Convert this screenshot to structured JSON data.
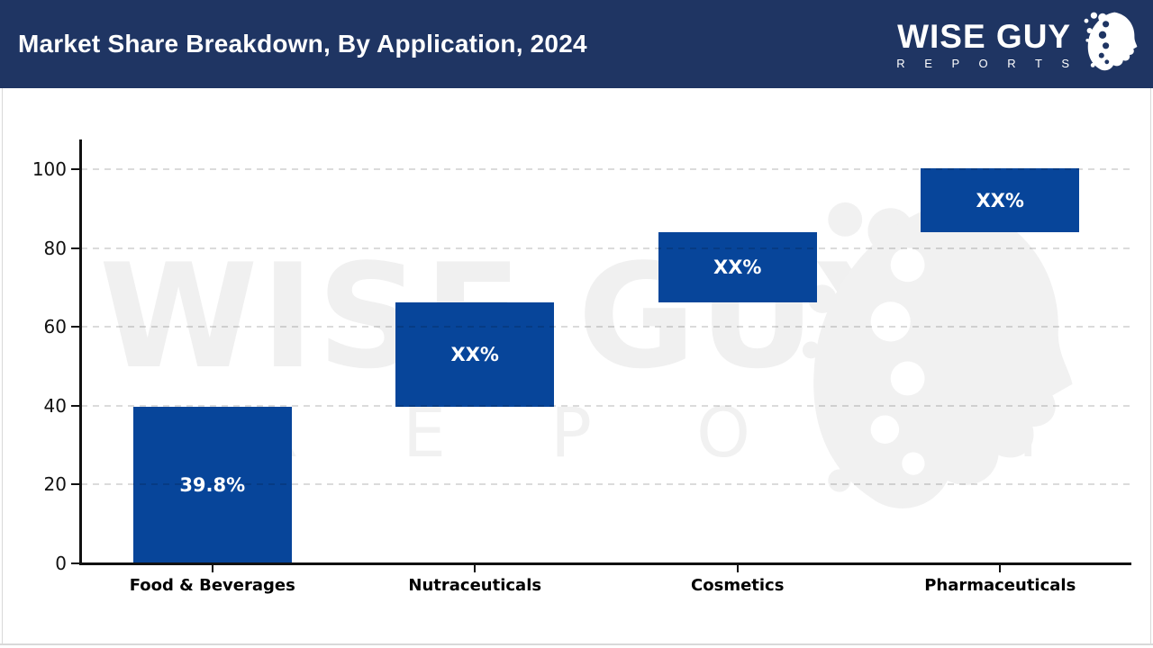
{
  "header": {
    "title": "Market Share Breakdown, By Application, 2024",
    "logo_line1": "WISE GUY",
    "logo_line2": "R E P O R T S"
  },
  "watermark": {
    "line1": "WISE GUY",
    "line2": "R E P O R T S"
  },
  "chart_data": {
    "type": "bar",
    "subtype": "stacked-waterfall",
    "title": "Market Share Breakdown, By Application, 2024",
    "categories": [
      "Food & Beverages",
      "Nutraceuticals",
      "Cosmetics",
      "Pharmaceuticals"
    ],
    "bars": [
      {
        "category": "Food & Beverages",
        "start": 0,
        "end": 39.8,
        "label": "39.8%"
      },
      {
        "category": "Nutraceuticals",
        "start": 39.8,
        "end": 66.3,
        "label": "XX%"
      },
      {
        "category": "Cosmetics",
        "start": 66.3,
        "end": 84.0,
        "label": "XX%"
      },
      {
        "category": "Pharmaceuticals",
        "start": 84.0,
        "end": 100.4,
        "label": "XX%"
      }
    ],
    "yticks": [
      0,
      20,
      40,
      60,
      80,
      100
    ],
    "ylim": [
      0,
      107.5
    ],
    "xlabel": "",
    "ylabel": "",
    "grid": "dashed-horizontal",
    "legend": null,
    "bar_color": "#07459a",
    "bar_label_color": "#ffffff"
  },
  "colors": {
    "header_bg": "#1f3563",
    "axis": "#111111",
    "watermark": "#f0f0f0"
  }
}
